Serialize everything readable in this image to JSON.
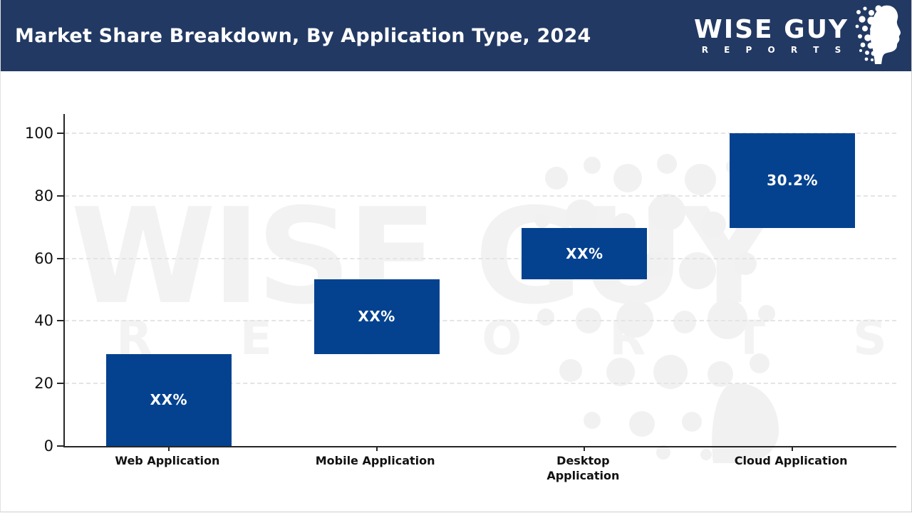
{
  "header": {
    "title": "Market Share Breakdown, By Application Type, 2024",
    "bg_color": "#223963",
    "logo": {
      "line1": "WISE GUY",
      "line2": "R E P O R T S",
      "icon": "dotted-face-profile"
    }
  },
  "watermark": {
    "line1": "WISE GUY",
    "line2": "R E P O R T S",
    "icon": "dotted-face-profile"
  },
  "chart_data": {
    "type": "bar",
    "subtype": "waterfall",
    "title": "Market Share Breakdown, By Application Type, 2024",
    "categories": [
      "Web Application",
      "Mobile Application",
      "Desktop Application",
      "Cloud Application"
    ],
    "category_lines": [
      [
        "Web Application"
      ],
      [
        "Mobile Application"
      ],
      [
        "Desktop",
        "Application"
      ],
      [
        "Cloud Application"
      ]
    ],
    "segments": [
      {
        "category": "Web Application",
        "start": 0,
        "end": 29.4,
        "value": 29.4,
        "label": "XX%"
      },
      {
        "category": "Mobile Application",
        "start": 29.4,
        "end": 53.4,
        "value": 24.0,
        "label": "XX%"
      },
      {
        "category": "Desktop Application",
        "start": 53.4,
        "end": 69.8,
        "value": 16.4,
        "label": "XX%"
      },
      {
        "category": "Cloud Application",
        "start": 69.8,
        "end": 100,
        "value": 30.2,
        "label": "30.2%"
      }
    ],
    "ylim": [
      0,
      100
    ],
    "yticks": [
      0,
      20,
      40,
      60,
      80,
      100
    ],
    "grid": "horizontal-dashed",
    "legend": "none",
    "bar_color": "#04428F",
    "bar_label_color": "#ffffff",
    "axis_color": "#262626"
  }
}
